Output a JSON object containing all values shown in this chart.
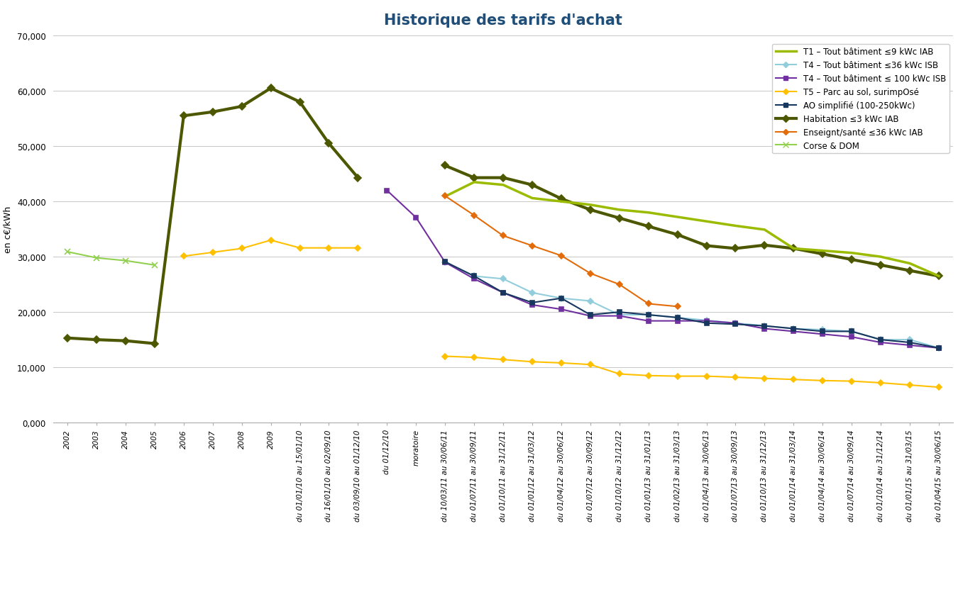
{
  "title": "Historique des tarifs d'achat",
  "ylabel": "en c€/kWh",
  "background_color": "#ffffff",
  "plot_bg_color": "#ffffff",
  "title_color": "#1f4e79",
  "title_fontsize": 15,
  "xlabels": [
    "2002",
    "2003",
    "2004",
    "2005",
    "2006",
    "2007",
    "2008",
    "2009",
    "du 01/01/10 au 15/01/10",
    "du 16/01/10 au 02/09/10",
    "du 03/09/10 au 01/12/10",
    "du 01/12/10",
    "moratoire",
    "du 10/03/11 au 30/06/11",
    "du 01/07/11 au 30/09/11",
    "du 01/10/11 au 31/12/11",
    "du 01/01/12 au 31/03/12",
    "du 01/04/12 au 30/06/12",
    "du 01/07/12 au 30/09/12",
    "du 01/10/12 au 31/12/12",
    "du 01/01/13 au 31/01/13",
    "du 01/02/13 au 31/03/13",
    "du 01/04/13 au 30/06/13",
    "du 01/07/13 au 30/09/13",
    "du 01/10/13 au 31/12/13",
    "du 01/01/14 au 31/03/14",
    "du 01/04/14 au 30/06/14",
    "du 01/07/14 au 30/09/14",
    "du 01/10/14 au 31/12/14",
    "du 01/01/15 au 31/03/15",
    "du 01/04/15 au 30/06/15"
  ],
  "series": {
    "T1": {
      "label": "T1 – Tout bâtiment ≤9 kWc IAB",
      "color": "#9bbb00",
      "linewidth": 2.5,
      "marker": "none",
      "linestyle": "-",
      "data": {
        "13": 40.9,
        "14": 43.5,
        "15": 43.0,
        "16": 40.6,
        "17": 40.0,
        "18": 39.4,
        "19": 38.5,
        "20": 38.0,
        "21": 37.2,
        "22": 36.4,
        "23": 35.6,
        "24": 34.9,
        "25": 31.5,
        "26": 31.1,
        "27": 30.7,
        "28": 30.0,
        "29": 28.8,
        "30": 26.5
      }
    },
    "T4_36": {
      "label": "T4 – Tout bâtiment ≤36 kWc ISB",
      "color": "#92cddc",
      "linewidth": 1.5,
      "marker": "D",
      "markersize": 4,
      "markercolor": "#92cddc",
      "linestyle": "-",
      "data": {
        "13": 29.0,
        "14": 26.5,
        "15": 26.0,
        "16": 23.5,
        "17": 22.5,
        "18": 22.0,
        "19": 19.5,
        "20": 19.5,
        "21": 19.0,
        "22": 18.5,
        "23": 18.0,
        "24": 17.5,
        "25": 17.0,
        "26": 16.8,
        "27": 16.5,
        "28": 15.0,
        "29": 15.0,
        "30": 13.5
      }
    },
    "T4_100": {
      "label": "T4 – Tout bâtiment ≤ 100 kWc ISB",
      "color": "#7030a0",
      "linewidth": 1.5,
      "marker": "s",
      "markersize": 5,
      "markercolor": "#7030a0",
      "linestyle": "-",
      "data": {
        "11": 42.0,
        "12": 37.1,
        "13": 29.0,
        "14": 26.0,
        "15": 23.5,
        "16": 21.3,
        "17": 20.5,
        "18": 19.3,
        "19": 19.3,
        "20": 18.4,
        "21": 18.4,
        "22": 18.4,
        "23": 18.0,
        "24": 17.0,
        "25": 16.5,
        "26": 16.0,
        "27": 15.5,
        "28": 14.5,
        "29": 14.0,
        "30": 13.5
      }
    },
    "T5": {
      "label": "T5 – Parc au sol, surimpOsé",
      "color": "#ffc000",
      "linewidth": 1.5,
      "marker": "D",
      "markersize": 4,
      "markercolor": "#ffc000",
      "linestyle": "-",
      "data": {
        "4": 30.1,
        "5": 30.8,
        "6": 31.5,
        "7": 33.0,
        "8": 31.6,
        "9": 31.6,
        "10": 31.6,
        "13": 12.0,
        "14": 11.8,
        "15": 11.4,
        "16": 11.0,
        "17": 10.8,
        "18": 10.5,
        "19": 8.8,
        "20": 8.5,
        "21": 8.4,
        "22": 8.4,
        "23": 8.2,
        "24": 8.0,
        "25": 7.8,
        "26": 7.6,
        "27": 7.5,
        "28": 7.2,
        "29": 6.8,
        "30": 6.4
      }
    },
    "AO": {
      "label": "AO simplifié (100-250kWc)",
      "color": "#17375e",
      "linewidth": 1.5,
      "marker": "s",
      "markersize": 5,
      "markercolor": "#17375e",
      "linestyle": "-",
      "data": {
        "13": 29.1,
        "14": 26.5,
        "15": 23.5,
        "16": 21.7,
        "17": 22.5,
        "18": 19.5,
        "19": 20.0,
        "20": 19.5,
        "21": 19.0,
        "22": 18.0,
        "23": 17.8,
        "24": 17.5,
        "25": 17.0,
        "26": 16.5,
        "27": 16.5,
        "28": 15.0,
        "29": 14.5,
        "30": 13.5
      }
    },
    "Habitation": {
      "label": "Habitation ≤3 kWc IAB",
      "color": "#4d5700",
      "linewidth": 3.0,
      "marker": "D",
      "markersize": 5,
      "markercolor": "#4d5700",
      "linestyle": "-",
      "data": {
        "0": 15.3,
        "1": 15.0,
        "2": 14.8,
        "3": 14.3,
        "4": 55.5,
        "5": 56.2,
        "6": 57.2,
        "7": 60.5,
        "8": 58.0,
        "9": 50.5,
        "10": 44.3,
        "13": 46.5,
        "14": 44.3,
        "15": 44.3,
        "16": 43.0,
        "17": 40.5,
        "18": 38.5,
        "19": 37.0,
        "20": 35.5,
        "21": 34.0,
        "22": 32.0,
        "23": 31.5,
        "24": 32.1,
        "25": 31.5,
        "26": 30.5,
        "27": 29.5,
        "28": 28.5,
        "29": 27.5,
        "30": 26.5
      }
    },
    "Enseignt": {
      "label": "Enseignt/santé ≤36 kWc IAB",
      "color": "#e36c0a",
      "linewidth": 1.5,
      "marker": "D",
      "markersize": 4,
      "markercolor": "#e36c0a",
      "linestyle": "-",
      "data": {
        "13": 41.0,
        "14": 37.5,
        "15": 33.8,
        "16": 32.0,
        "17": 30.2,
        "18": 27.0,
        "19": 25.0,
        "20": 21.5,
        "21": 21.0
      }
    },
    "Corse": {
      "label": "Corse & DOM",
      "color": "#92d050",
      "linewidth": 1.5,
      "marker": "x",
      "markersize": 6,
      "markercolor": "#92d050",
      "linestyle": "-",
      "data": {
        "0": 30.9,
        "1": 29.8,
        "2": 29.3,
        "3": 28.5
      }
    }
  }
}
